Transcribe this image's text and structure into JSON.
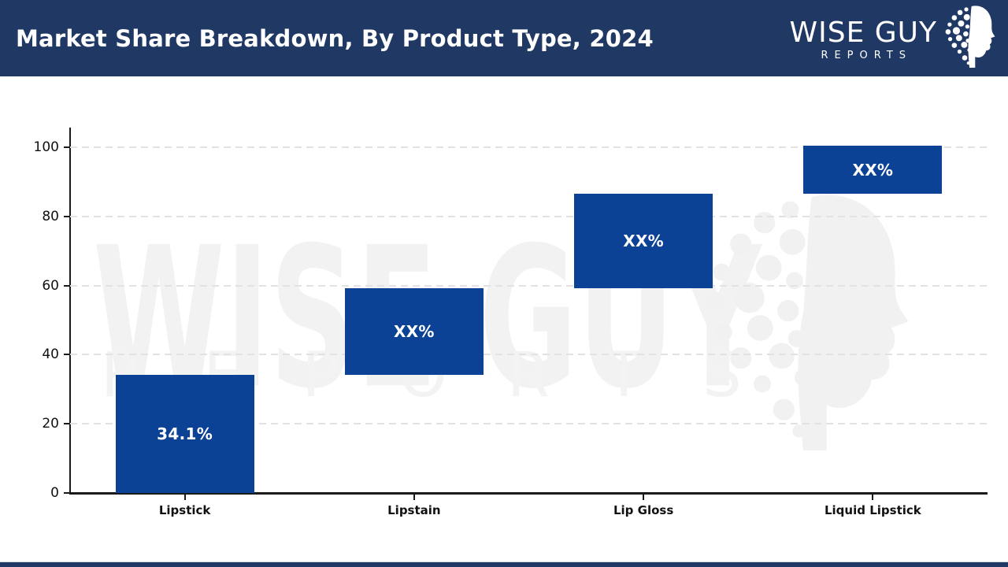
{
  "header": {
    "title": "Market Share Breakdown, By Product Type, 2024",
    "logo": {
      "name": "WISE GUY",
      "sub": "REPORTS"
    }
  },
  "watermark": {
    "name": "WISE GUY",
    "sub": "REPORTS"
  },
  "colors": {
    "header_bg": "#1f3864",
    "bar": "#0b4296",
    "bar_label": "#ffffff",
    "grid": "#e2e2e2",
    "axis": "#1a1a1a",
    "watermark": "#f1f1f1"
  },
  "chart_data": {
    "type": "bar",
    "subtype": "waterfall",
    "title": "Market Share Breakdown, By Product Type, 2024",
    "categories": [
      "Lipstick",
      "Lipstain",
      "Lip Gloss",
      "Liquid Lipstick"
    ],
    "segments": [
      {
        "category": "Lipstick",
        "start": 0,
        "end": 34.1,
        "label": "34.1%"
      },
      {
        "category": "Lipstain",
        "start": 34.1,
        "end": 59.3,
        "label": "XX%"
      },
      {
        "category": "Lip Gloss",
        "start": 59.3,
        "end": 86.6,
        "label": "XX%"
      },
      {
        "category": "Liquid Lipstick",
        "start": 86.6,
        "end": 100.4,
        "label": "XX%"
      }
    ],
    "yticks": [
      "0",
      "20",
      "40",
      "60",
      "80",
      "100"
    ],
    "ylim": [
      0,
      105.5
    ],
    "xlabel": "",
    "ylabel": "",
    "grid": "horizontal-dashed",
    "legend": "none"
  }
}
